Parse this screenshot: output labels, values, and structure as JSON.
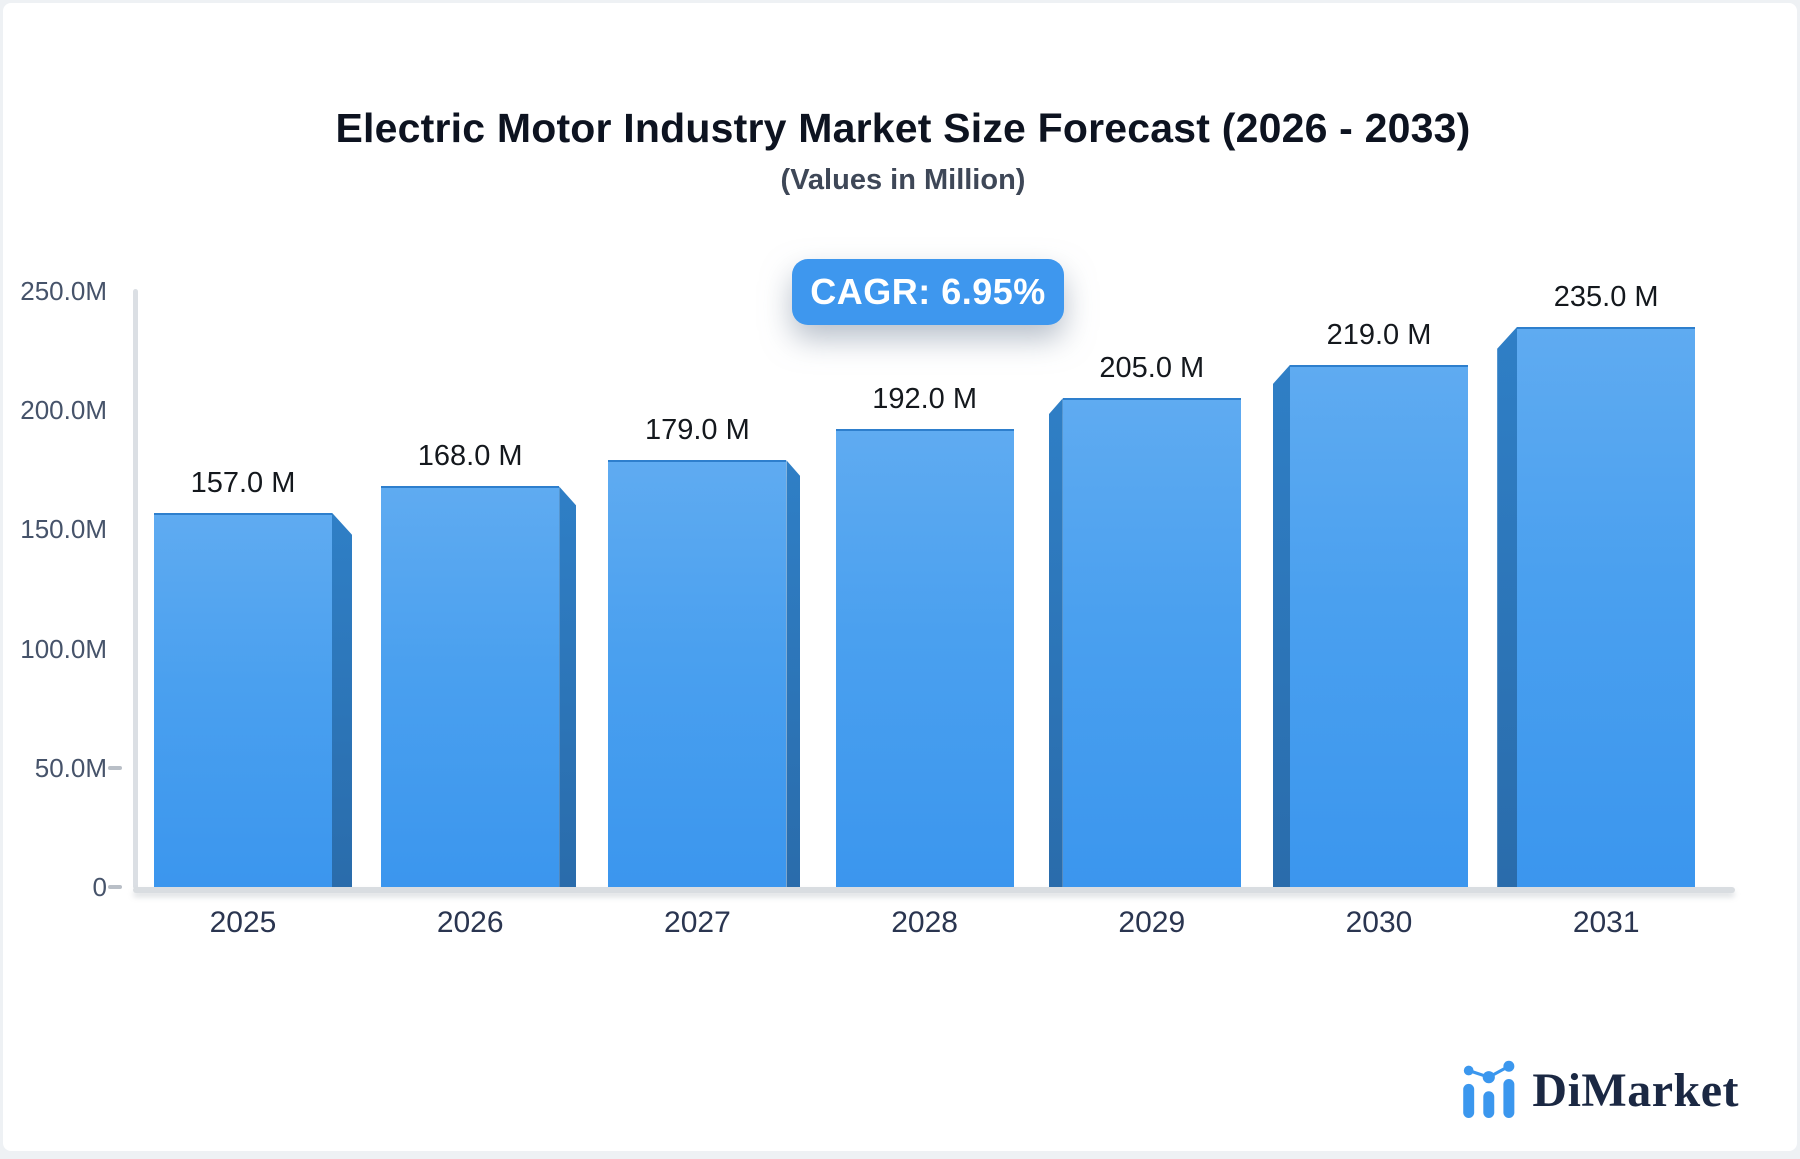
{
  "title": "Electric Motor Industry Market Size Forecast (2026 - 2033)",
  "subtitle": "(Values in Million)",
  "badge": {
    "label": "CAGR: 6.95%"
  },
  "logo": {
    "text": "DiMarket",
    "icon": "bar-chart-with-trend-dots-icon"
  },
  "colors": {
    "accent": "#3e97ee",
    "bar_top": "#5fabf1",
    "bar_bottom": "#3b96ee",
    "bar_side": "#2c72b4",
    "title": "#0d1320",
    "navy": "#1b2843",
    "axis_gray": "#d9dde1"
  },
  "y_axis": {
    "unit": "Million",
    "ticks": [
      {
        "label": "250.0M",
        "value": 250,
        "dash": false
      },
      {
        "label": "200.0M",
        "value": 200,
        "dash": false
      },
      {
        "label": "150.0M",
        "value": 150,
        "dash": false
      },
      {
        "label": "100.0M",
        "value": 100,
        "dash": false
      },
      {
        "label": "50.0M",
        "value": 50,
        "dash": true
      },
      {
        "label": "0",
        "value": 0,
        "dash": true
      }
    ]
  },
  "chart_data": {
    "type": "bar",
    "title": "Electric Motor Industry Market Size Forecast (2026 - 2033)",
    "subtitle": "(Values in Million)",
    "categories": [
      "2025",
      "2026",
      "2027",
      "2028",
      "2029",
      "2030",
      "2031"
    ],
    "values": [
      157,
      168,
      179,
      192,
      205,
      219,
      235
    ],
    "value_labels": [
      "157.0 M",
      "168.0 M",
      "179.0 M",
      "192.0 M",
      "205.0 M",
      "219.0 M",
      "235.0 M"
    ],
    "xlabel": "",
    "ylabel": "",
    "ylim": [
      0,
      250
    ],
    "grid": false,
    "legend": false,
    "annotation": "CAGR: 6.95%",
    "style": "3d-perspective-bars-lit-from-center"
  }
}
